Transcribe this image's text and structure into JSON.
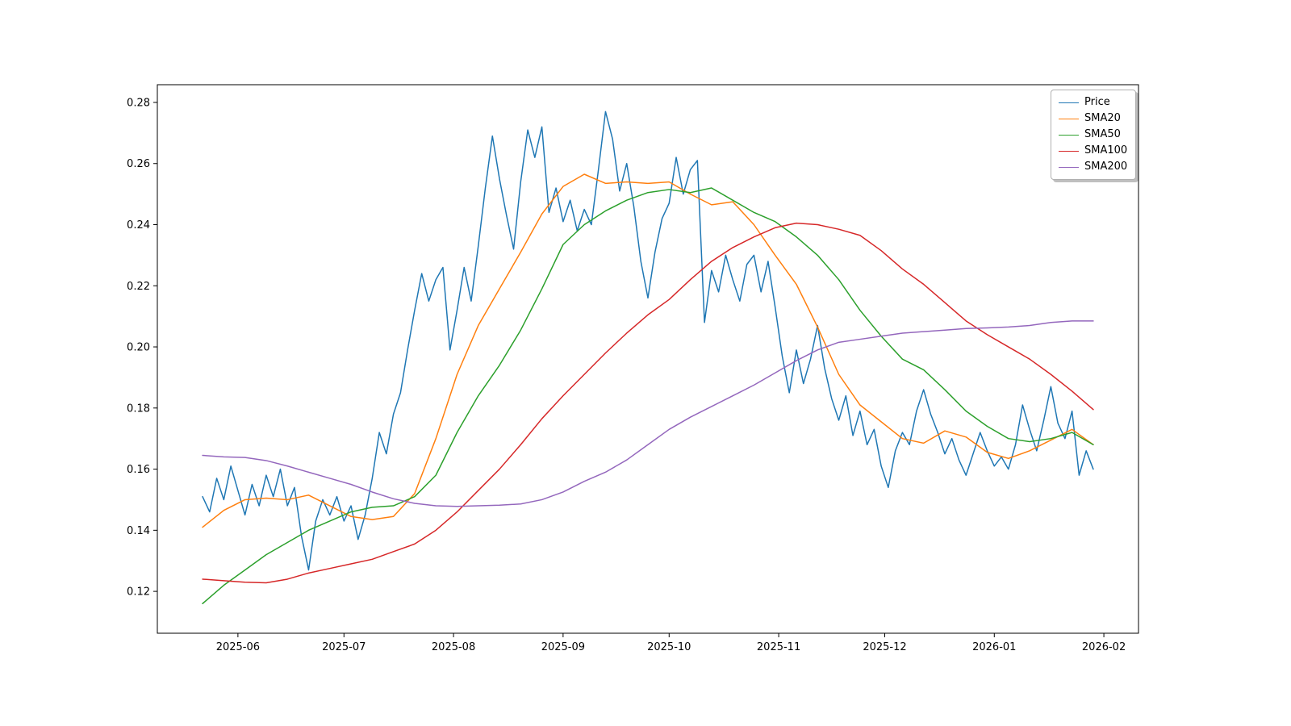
{
  "figure": {
    "background": "#ffffff",
    "axes_frame_color": "#000000"
  },
  "chart_data": {
    "type": "line",
    "title": "",
    "xlabel": "",
    "ylabel": "",
    "grid": false,
    "x_unit": "days (day 0 = first plotted point, ~10 days before first x tick)",
    "xlim_days": [
      -12.8,
      264.8
    ],
    "ylim": [
      0.1063,
      0.2858
    ],
    "x_ticks": [
      {
        "label": "2025-06",
        "day": 10
      },
      {
        "label": "2025-07",
        "day": 40
      },
      {
        "label": "2025-08",
        "day": 71
      },
      {
        "label": "2025-09",
        "day": 102
      },
      {
        "label": "2025-10",
        "day": 132
      },
      {
        "label": "2025-11",
        "day": 163
      },
      {
        "label": "2025-12",
        "day": 193
      },
      {
        "label": "2026-01",
        "day": 224
      },
      {
        "label": "2026-02",
        "day": 255
      }
    ],
    "y_ticks": [
      "0.12",
      "0.14",
      "0.16",
      "0.18",
      "0.20",
      "0.22",
      "0.24",
      "0.26",
      "0.28"
    ],
    "legend": {
      "position": "upper right",
      "entries": [
        "Price",
        "SMA20",
        "SMA50",
        "SMA100",
        "SMA200"
      ]
    },
    "series": [
      {
        "name": "Price",
        "color": "#1f77b4",
        "start_day": 0,
        "step_days": 2,
        "values": [
          0.151,
          0.146,
          0.157,
          0.15,
          0.161,
          0.153,
          0.145,
          0.155,
          0.148,
          0.158,
          0.151,
          0.16,
          0.148,
          0.154,
          0.138,
          0.127,
          0.143,
          0.15,
          0.145,
          0.151,
          0.143,
          0.148,
          0.137,
          0.145,
          0.157,
          0.172,
          0.165,
          0.178,
          0.185,
          0.199,
          0.212,
          0.224,
          0.215,
          0.222,
          0.226,
          0.199,
          0.212,
          0.226,
          0.215,
          0.233,
          0.252,
          0.269,
          0.255,
          0.243,
          0.232,
          0.254,
          0.271,
          0.262,
          0.272,
          0.244,
          0.252,
          0.241,
          0.248,
          0.238,
          0.245,
          0.24,
          0.258,
          0.277,
          0.268,
          0.251,
          0.26,
          0.246,
          0.228,
          0.216,
          0.231,
          0.242,
          0.247,
          0.262,
          0.25,
          0.258,
          0.261,
          0.208,
          0.225,
          0.218,
          0.23,
          0.222,
          0.215,
          0.227,
          0.23,
          0.218,
          0.228,
          0.213,
          0.197,
          0.185,
          0.199,
          0.188,
          0.196,
          0.207,
          0.193,
          0.183,
          0.176,
          0.184,
          0.171,
          0.179,
          0.168,
          0.173,
          0.161,
          0.154,
          0.166,
          0.172,
          0.168,
          0.179,
          0.186,
          0.178,
          0.172,
          0.165,
          0.17,
          0.163,
          0.158,
          0.165,
          0.172,
          0.166,
          0.161,
          0.164,
          0.16,
          0.168,
          0.181,
          0.173,
          0.166,
          0.176,
          0.187,
          0.175,
          0.17,
          0.179,
          0.158,
          0.166,
          0.16
        ]
      },
      {
        "name": "SMA20",
        "color": "#ff7f0e",
        "start_day": 0,
        "step_days": 6,
        "values": [
          0.141,
          0.1465,
          0.15,
          0.1505,
          0.15,
          0.1515,
          0.148,
          0.1445,
          0.1435,
          0.1445,
          0.152,
          0.17,
          0.191,
          0.207,
          0.219,
          0.231,
          0.2435,
          0.2525,
          0.2565,
          0.2535,
          0.254,
          0.2535,
          0.254,
          0.25,
          0.2465,
          0.2475,
          0.24,
          0.23,
          0.2205,
          0.2065,
          0.191,
          0.181,
          0.1755,
          0.17,
          0.1685,
          0.1725,
          0.1705,
          0.1655,
          0.1635,
          0.166,
          0.1695,
          0.173,
          0.168
        ]
      },
      {
        "name": "SMA50",
        "color": "#2ca02c",
        "start_day": 0,
        "step_days": 6,
        "values": [
          0.116,
          0.122,
          0.127,
          0.132,
          0.136,
          0.14,
          0.143,
          0.146,
          0.1475,
          0.148,
          0.151,
          0.158,
          0.172,
          0.184,
          0.194,
          0.2055,
          0.219,
          0.2335,
          0.24,
          0.2445,
          0.248,
          0.2505,
          0.2515,
          0.2505,
          0.252,
          0.248,
          0.244,
          0.241,
          0.236,
          0.23,
          0.222,
          0.212,
          0.2035,
          0.196,
          0.1925,
          0.186,
          0.179,
          0.174,
          0.17,
          0.169,
          0.17,
          0.172,
          0.168
        ]
      },
      {
        "name": "SMA100",
        "color": "#d62728",
        "start_day": 0,
        "step_days": 6,
        "values": [
          0.124,
          0.1235,
          0.123,
          0.1228,
          0.124,
          0.126,
          0.1275,
          0.129,
          0.1305,
          0.133,
          0.1355,
          0.14,
          0.146,
          0.153,
          0.16,
          0.168,
          0.1765,
          0.184,
          0.191,
          0.198,
          0.2045,
          0.2105,
          0.2155,
          0.222,
          0.228,
          0.2325,
          0.236,
          0.239,
          0.2405,
          0.24,
          0.2385,
          0.2365,
          0.2315,
          0.2255,
          0.2205,
          0.2145,
          0.2085,
          0.204,
          0.2,
          0.196,
          0.191,
          0.1855,
          0.1795
        ]
      },
      {
        "name": "SMA200",
        "color": "#9467bd",
        "start_day": 0,
        "step_days": 6,
        "values": [
          0.1645,
          0.164,
          0.1638,
          0.1628,
          0.161,
          0.159,
          0.157,
          0.155,
          0.1525,
          0.1503,
          0.1488,
          0.148,
          0.1478,
          0.148,
          0.1482,
          0.1486,
          0.15,
          0.1525,
          0.156,
          0.159,
          0.163,
          0.168,
          0.173,
          0.177,
          0.1805,
          0.184,
          0.1875,
          0.1915,
          0.1955,
          0.199,
          0.2015,
          0.2025,
          0.2035,
          0.2045,
          0.205,
          0.2055,
          0.206,
          0.2062,
          0.2065,
          0.207,
          0.208,
          0.2085,
          0.2085
        ]
      }
    ]
  }
}
